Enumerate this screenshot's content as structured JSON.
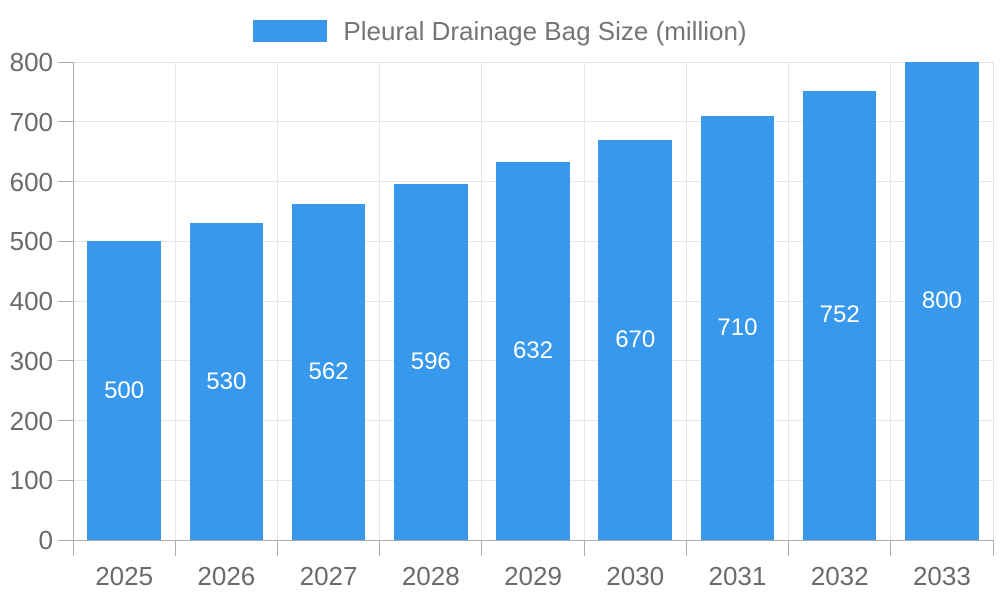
{
  "legend": {
    "label": "Pleural Drainage Bag Size (million)",
    "swatch_color": "#3899EC"
  },
  "chart_data": {
    "type": "bar",
    "title": "Pleural Drainage Bag Size (million)",
    "series_name": "Pleural Drainage Bag Size (million)",
    "categories": [
      "2025",
      "2026",
      "2027",
      "2028",
      "2029",
      "2030",
      "2031",
      "2032",
      "2033"
    ],
    "values": [
      500,
      530,
      562,
      596,
      632,
      670,
      710,
      752,
      800
    ],
    "xlabel": "",
    "ylabel": "",
    "ylim": [
      0,
      800
    ],
    "yticks": [
      0,
      100,
      200,
      300,
      400,
      500,
      600,
      700,
      800
    ],
    "grid": true,
    "legend_position": "top",
    "bar_label_position": "center",
    "bar_color": "#3899EC",
    "bar_label_color": "#FFFFFF"
  },
  "style": {
    "axis_color": "#ACACAC",
    "grid_color": "#E6E6E6",
    "tick_label_color": "#6B6B6B",
    "legend_text_color": "#757575",
    "background": "#FFFFFF"
  }
}
